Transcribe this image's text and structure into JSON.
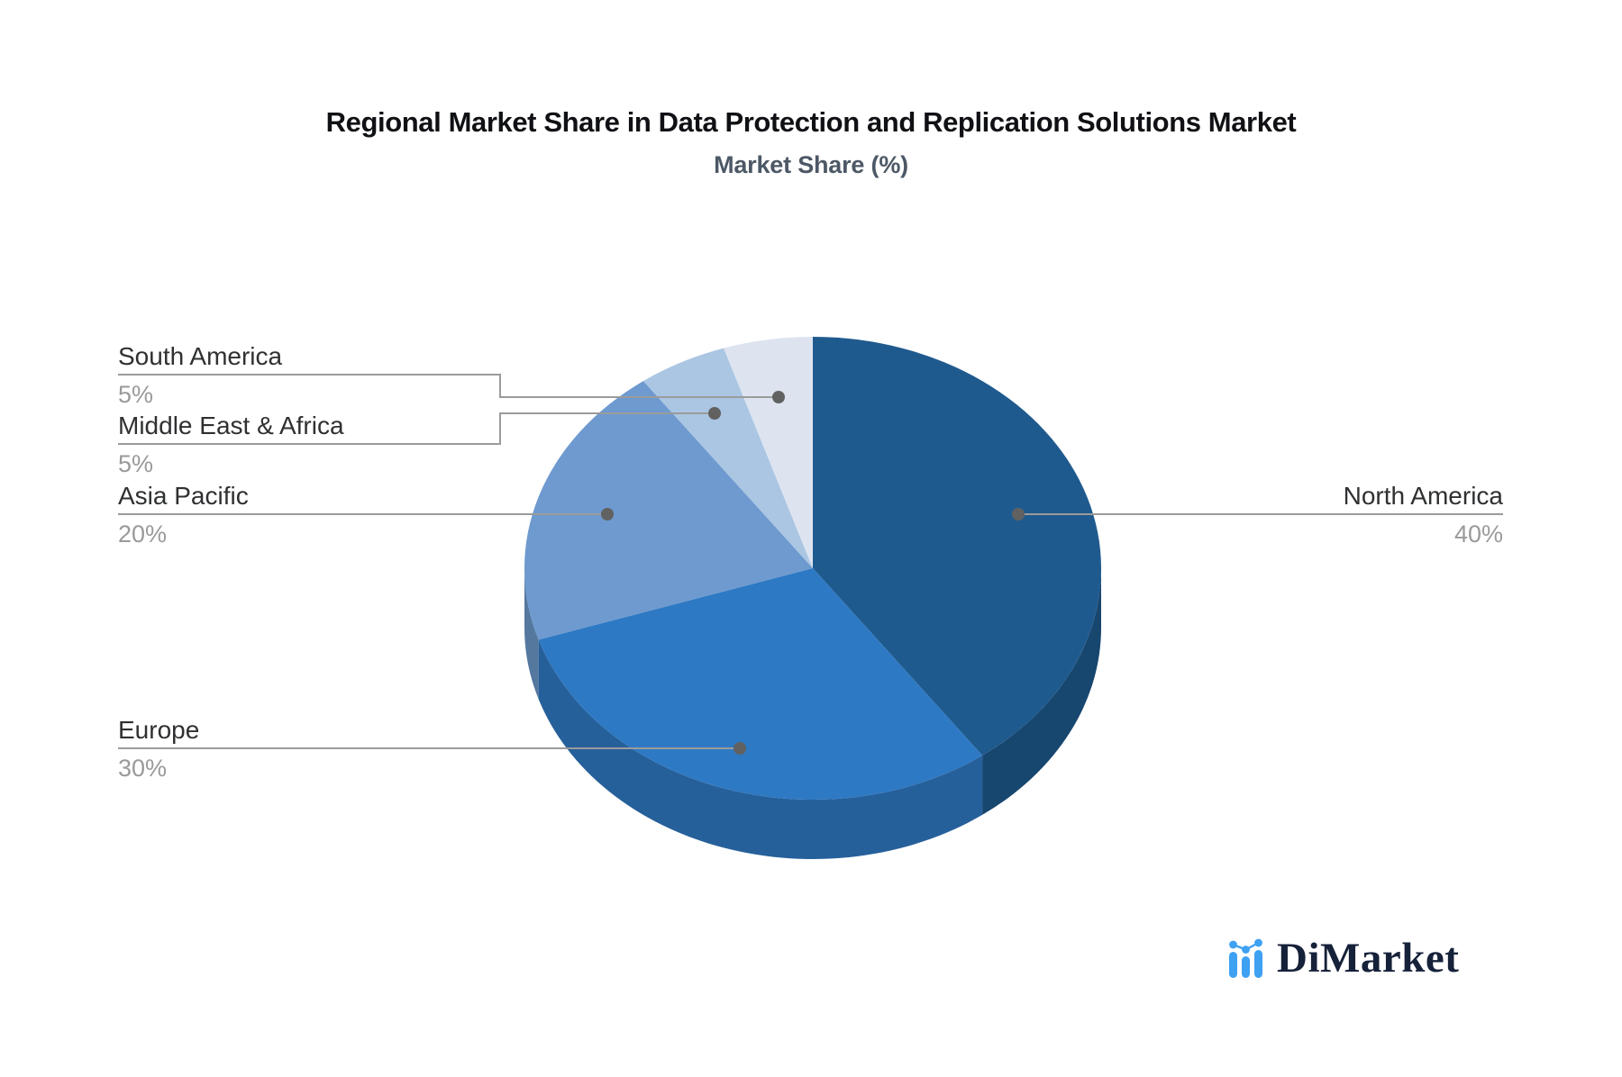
{
  "title": "Regional Market Share in Data Protection and Replication Solutions Market",
  "subtitle": "Market Share (%)",
  "logo": {
    "text": "DiMarket",
    "icon": "bar-line-chart-icon",
    "icon_color": "#3ea1f2",
    "text_color": "#16213a"
  },
  "chart_data": {
    "type": "pie",
    "title": "Regional Market Share in Data Protection and Replication Solutions Market",
    "subtitle": "Market Share (%)",
    "unit": "%",
    "style": "3d-pie",
    "start_angle": "12-o-clock",
    "direction": "clockwise",
    "label_format": "{value}%",
    "slices": [
      {
        "label": "North America",
        "value": 40,
        "color": "#1f5a8e",
        "depth_color": "#17466f"
      },
      {
        "label": "Europe",
        "value": 30,
        "color": "#2e79c3",
        "depth_color": "#26609b"
      },
      {
        "label": "Asia Pacific",
        "value": 20,
        "color": "#6e9acf",
        "depth_color": "#55789f"
      },
      {
        "label": "Middle East & Africa",
        "value": 5,
        "color": "#aac6e3",
        "depth_color": "#8fa9c6"
      },
      {
        "label": "South America",
        "value": 5,
        "color": "#dde4f0",
        "depth_color": "#b9c2d4"
      }
    ],
    "leader_line_color": "#9b9b9b",
    "leader_dot_color": "#616161"
  }
}
